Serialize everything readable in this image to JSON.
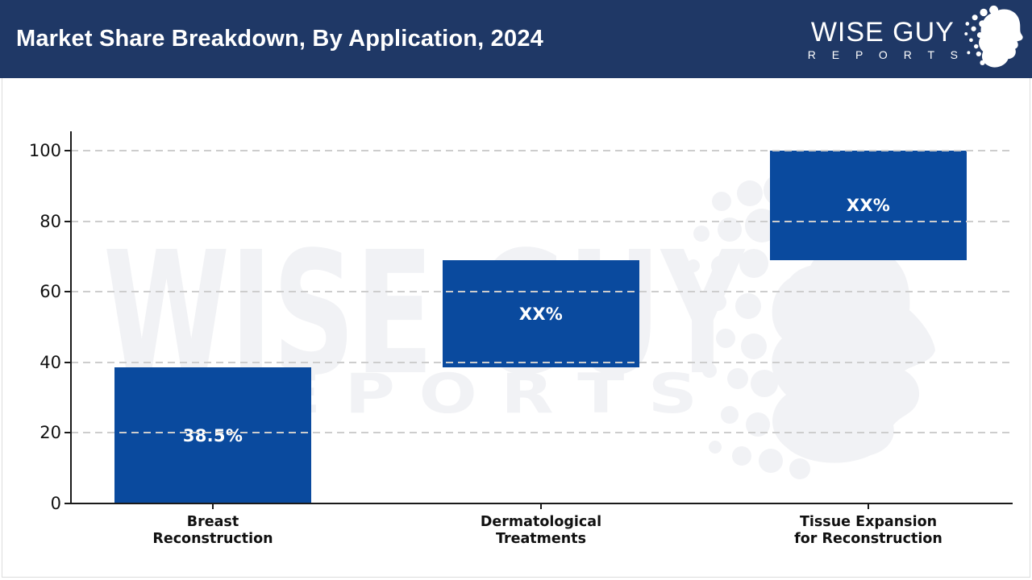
{
  "header": {
    "title": "Market Share Breakdown, By Application, 2024",
    "logo": {
      "line1": "WISE GUY",
      "line2": "R E P O R T S"
    }
  },
  "watermark": {
    "line1": "WISE GUY",
    "line2": "R E P O R T S"
  },
  "colors": {
    "header_bg": "#1f3866",
    "bar": "#0a4a9e",
    "bar_label": "#ffffff",
    "grid": "#cdcdcd",
    "axis": "#1a1a1a",
    "tick_text": "#111111",
    "watermark": "#f1f2f5",
    "frame_border": "#dcdcdc"
  },
  "chart_data": {
    "type": "bar",
    "variant": "floating-segment-breakdown",
    "title": "Market Share Breakdown, By Application, 2024",
    "categories": [
      {
        "lines": [
          "Breast",
          "Reconstruction"
        ]
      },
      {
        "lines": [
          "Dermatological",
          "Treatments"
        ]
      },
      {
        "lines": [
          "Tissue Expansion",
          "for Reconstruction"
        ]
      }
    ],
    "segments": [
      {
        "start": 0,
        "end": 38.5,
        "label": "38.5%"
      },
      {
        "start": 38.5,
        "end": 69,
        "label": "XX%"
      },
      {
        "start": 69,
        "end": 100,
        "label": "XX%"
      }
    ],
    "yticks": [
      0,
      20,
      40,
      60,
      80,
      100
    ],
    "ylim": [
      0,
      105.5
    ],
    "xlabel": "",
    "ylabel": "",
    "grid": {
      "axis": "y",
      "style": "dashed"
    },
    "legend": false
  }
}
